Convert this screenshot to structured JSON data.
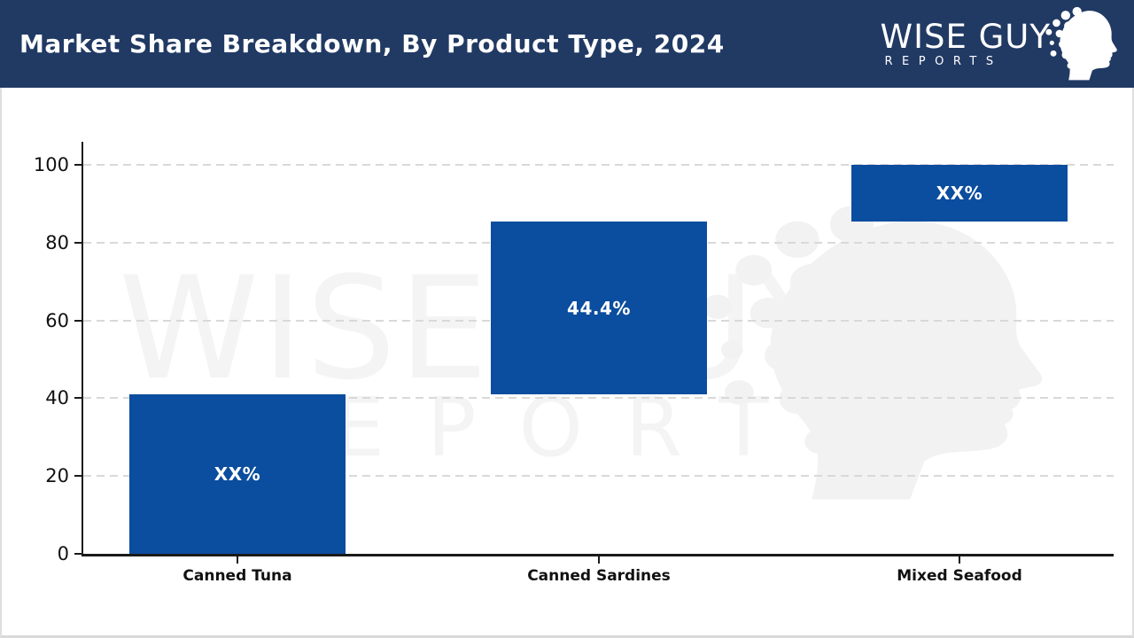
{
  "header": {
    "title": "Market Share Breakdown, By Product Type, 2024",
    "bg_color": "#213a64",
    "logo": {
      "line1": "WISE GUY",
      "line2": "REPORTS"
    }
  },
  "watermark": {
    "line1": "WISE GUY",
    "line2": "REPORTS"
  },
  "chart_data": {
    "type": "bar",
    "subtype": "waterfall",
    "title": "Market Share Breakdown, By Product Type, 2024",
    "categories": [
      "Canned Tuna",
      "Canned Sardines",
      "Mixed Seafood"
    ],
    "values": [
      41,
      44.4,
      14.6
    ],
    "segments": [
      {
        "category": "Canned Tuna",
        "start": 0,
        "end": 41,
        "label": "XX%"
      },
      {
        "category": "Canned Sardines",
        "start": 41,
        "end": 85.4,
        "label": "44.4%"
      },
      {
        "category": "Mixed Seafood",
        "start": 85.4,
        "end": 100,
        "label": "XX%"
      }
    ],
    "xlabel": "",
    "ylabel": "",
    "ylim": [
      0,
      100
    ],
    "yticks": [
      0,
      20,
      40,
      60,
      80,
      100
    ],
    "grid": "horizontal-dashed",
    "legend": "none",
    "bar_color": "#0b4d9e",
    "bar_label_color": "#ffffff",
    "gridline_color": "#d9d9d9",
    "axis_color": "#1a1a1a"
  }
}
